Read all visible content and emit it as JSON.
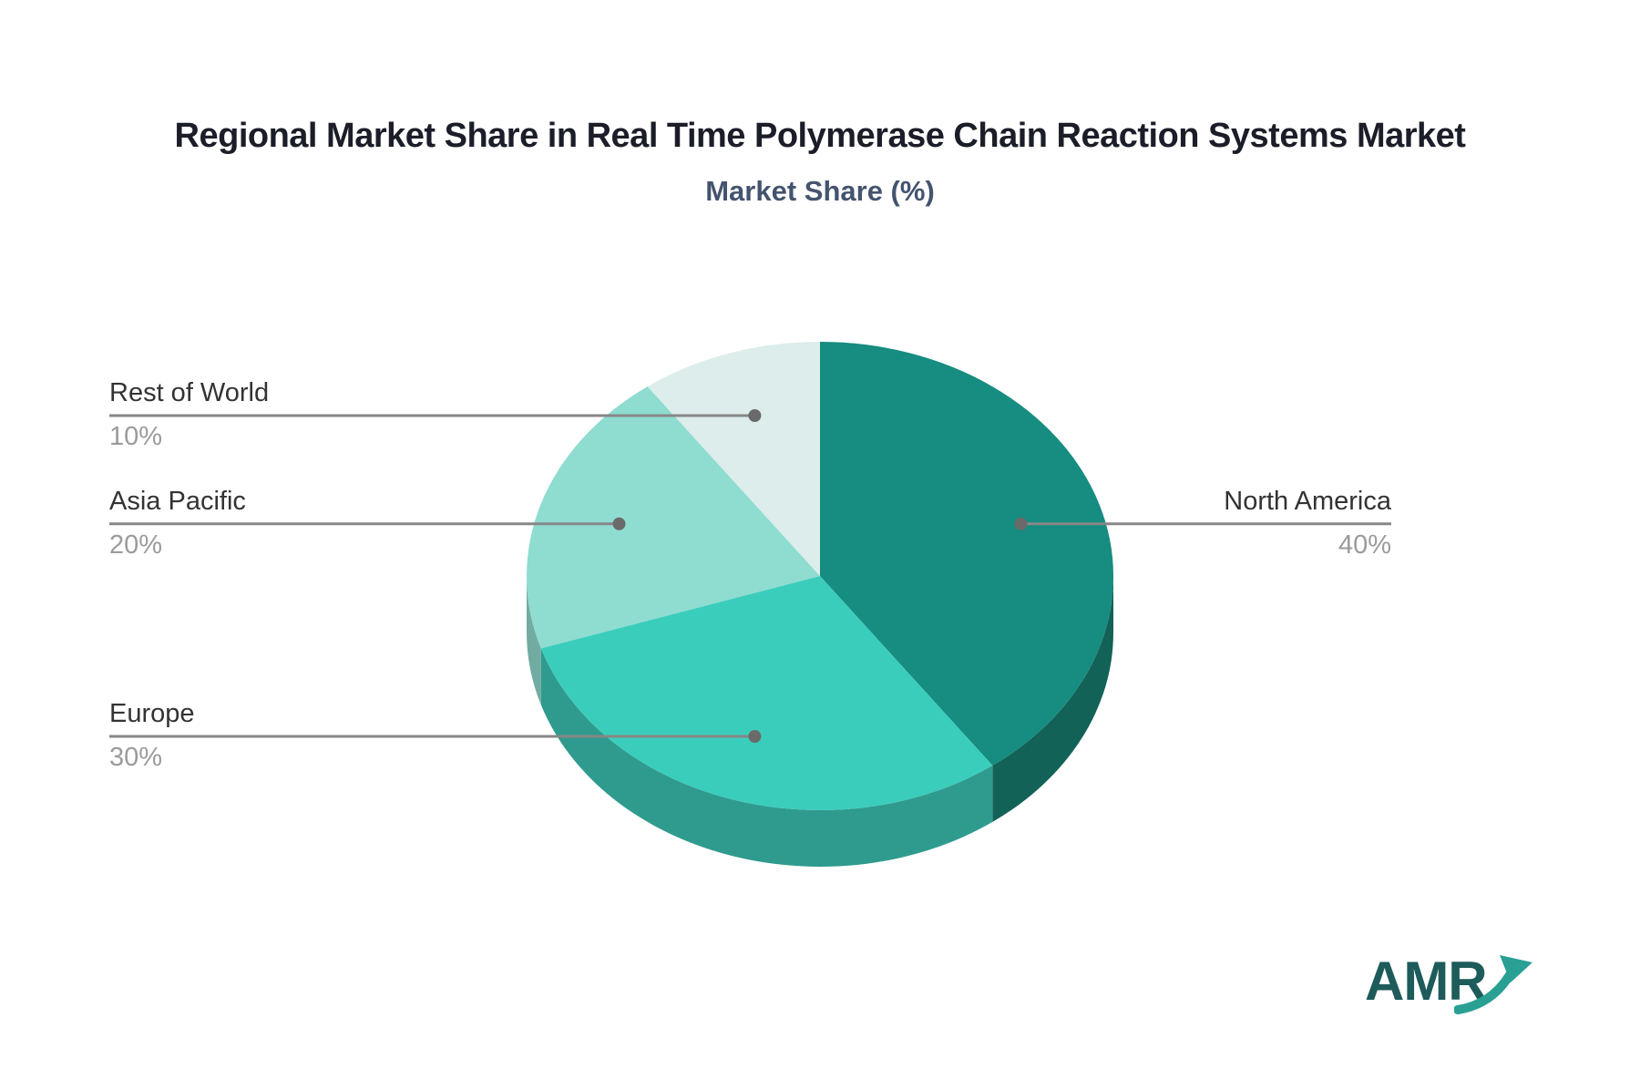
{
  "header": {
    "title": "Regional Market Share in Real Time Polymerase Chain Reaction Systems Market",
    "subtitle": "Market Share (%)"
  },
  "chart_data": {
    "type": "pie",
    "style": "3d-pie",
    "title": "Regional Market Share in Real Time Polymerase Chain Reaction Systems Market",
    "subtitle": "Market Share (%)",
    "unit": "%",
    "start_angle_deg": 0,
    "direction": "clockwise",
    "legend": "none",
    "labels_connected_by_leader_lines": true,
    "slices": [
      {
        "label": "North America",
        "value": 40,
        "display": "40%",
        "color": "#178c80",
        "side_color": "#136258",
        "label_side": "right"
      },
      {
        "label": "Europe",
        "value": 30,
        "display": "30%",
        "color": "#3bcdbc",
        "side_color": "#2f9b8e",
        "label_side": "left"
      },
      {
        "label": "Asia Pacific",
        "value": 20,
        "display": "20%",
        "color": "#8fdcd1",
        "side_color": "#72aba2",
        "label_side": "left"
      },
      {
        "label": "Rest of World",
        "value": 10,
        "display": "10%",
        "color": "#dcedeb",
        "side_color": "#a9c8c4",
        "label_side": "left"
      }
    ]
  },
  "colors": {
    "title_text": "#1b1e28",
    "subtitle_text": "#44546f",
    "label_text": "#333333",
    "value_text": "#9b9b9b",
    "leader_line": "#878787",
    "leader_dot": "#6a6a6a",
    "background": "#ffffff"
  },
  "logo": {
    "text": "AMR",
    "text_color": "#1e5b5b",
    "arrow_color": "#2aa094"
  }
}
